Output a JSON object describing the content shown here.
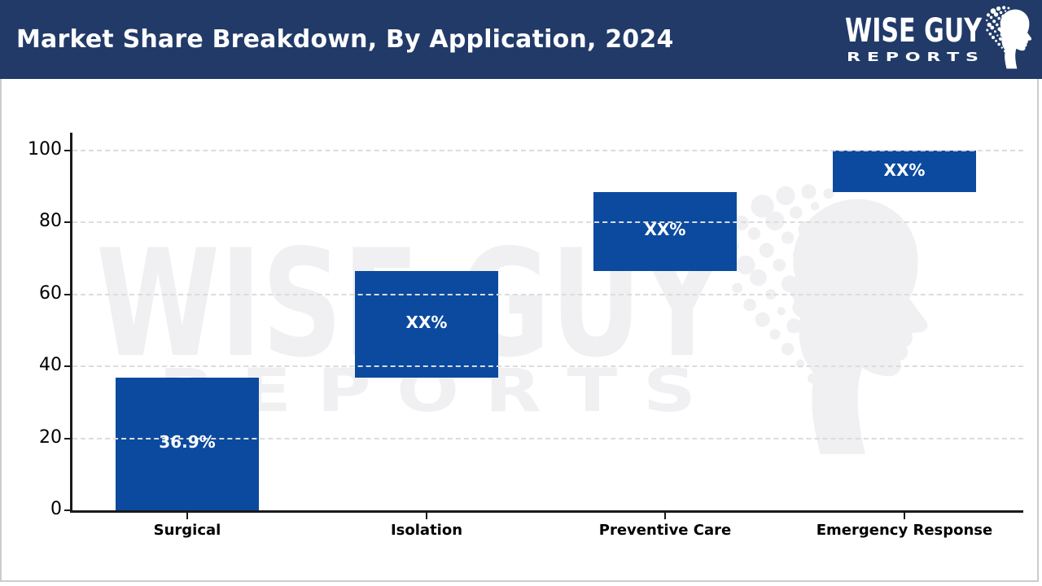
{
  "header": {
    "title": "Market Share Breakdown, By Application, 2024"
  },
  "branding": {
    "logo_line1": "WISE GUY",
    "logo_line2": "R E P O R T S",
    "watermark_line1": "WISE GUY",
    "watermark_line2": "R E P O R T S"
  },
  "colors": {
    "header_bg": "#213a68",
    "bar": "#0b4a9f",
    "grid": "#dcdcdc",
    "axis": "#1a1a1a",
    "bar_label_text": "#ffffff",
    "watermark": "#f0f0f2",
    "title_text": "#ffffff"
  },
  "chart_data": {
    "type": "bar",
    "subtype": "waterfall",
    "title": "Market Share Breakdown, By Application, 2024",
    "xlabel": "",
    "ylabel": "",
    "categories": [
      "Surgical",
      "Isolation",
      "Preventive Care",
      "Emergency Response"
    ],
    "segments": [
      {
        "category": "Surgical",
        "start": 0,
        "end": 36.9,
        "label": "36.9%"
      },
      {
        "category": "Isolation",
        "start": 36.9,
        "end": 66.6,
        "label": "XX%"
      },
      {
        "category": "Preventive Care",
        "start": 66.6,
        "end": 88.4,
        "label": "XX%"
      },
      {
        "category": "Emergency Response",
        "start": 88.4,
        "end": 100,
        "label": "XX%"
      }
    ],
    "yticks": [
      0,
      20,
      40,
      60,
      80,
      100
    ],
    "ylim": [
      0,
      105
    ],
    "grid": "horizontal dashed at y ticks, drawn over bars",
    "legend": "none"
  }
}
